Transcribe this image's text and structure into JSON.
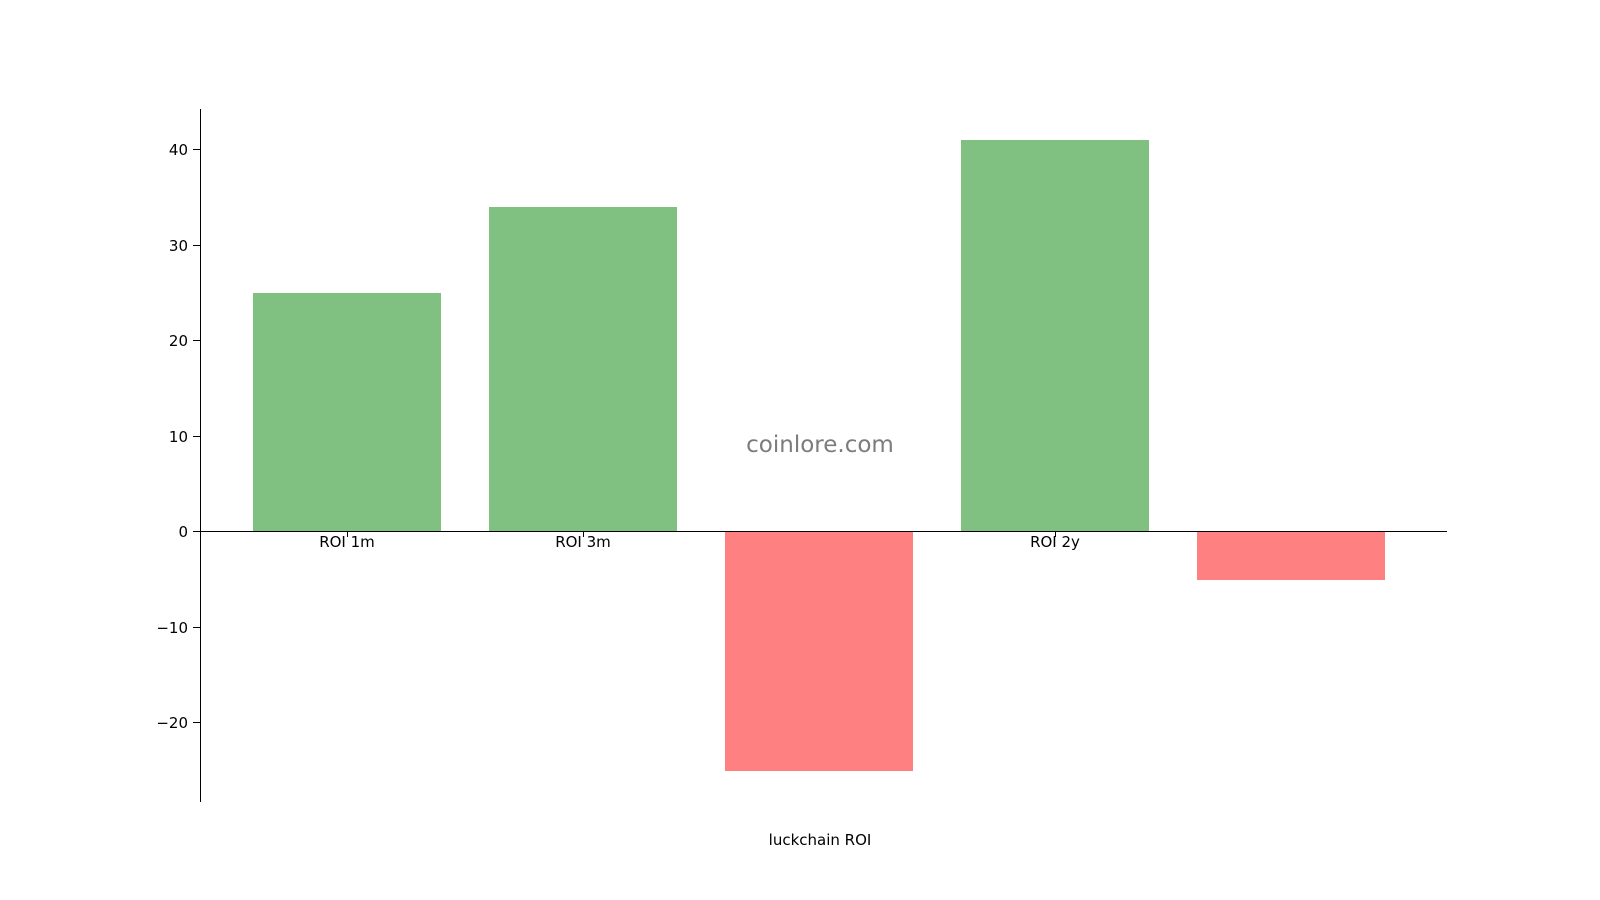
{
  "page": {
    "background": "#ffffff"
  },
  "watermark": {
    "text": "coinlore.com",
    "color": "#7c7c7c"
  },
  "chart_data": {
    "type": "bar",
    "title": "",
    "xlabel": "luckchain ROI",
    "ylabel": "",
    "categories": [
      "ROI 1m",
      "ROI 3m",
      "",
      "ROI 2y",
      ""
    ],
    "values": [
      25,
      34,
      -25,
      41,
      -5
    ],
    "positive_color": "#80c080",
    "negative_color": "#ff8080",
    "axis_color": "#000000",
    "yticks": [
      40,
      30,
      20,
      10,
      0,
      -10,
      -20
    ],
    "ylim": [
      -28.3,
      44.3
    ],
    "grid": false,
    "legend": "none",
    "note": "bars below zero overlap and hide their x tick labels"
  }
}
